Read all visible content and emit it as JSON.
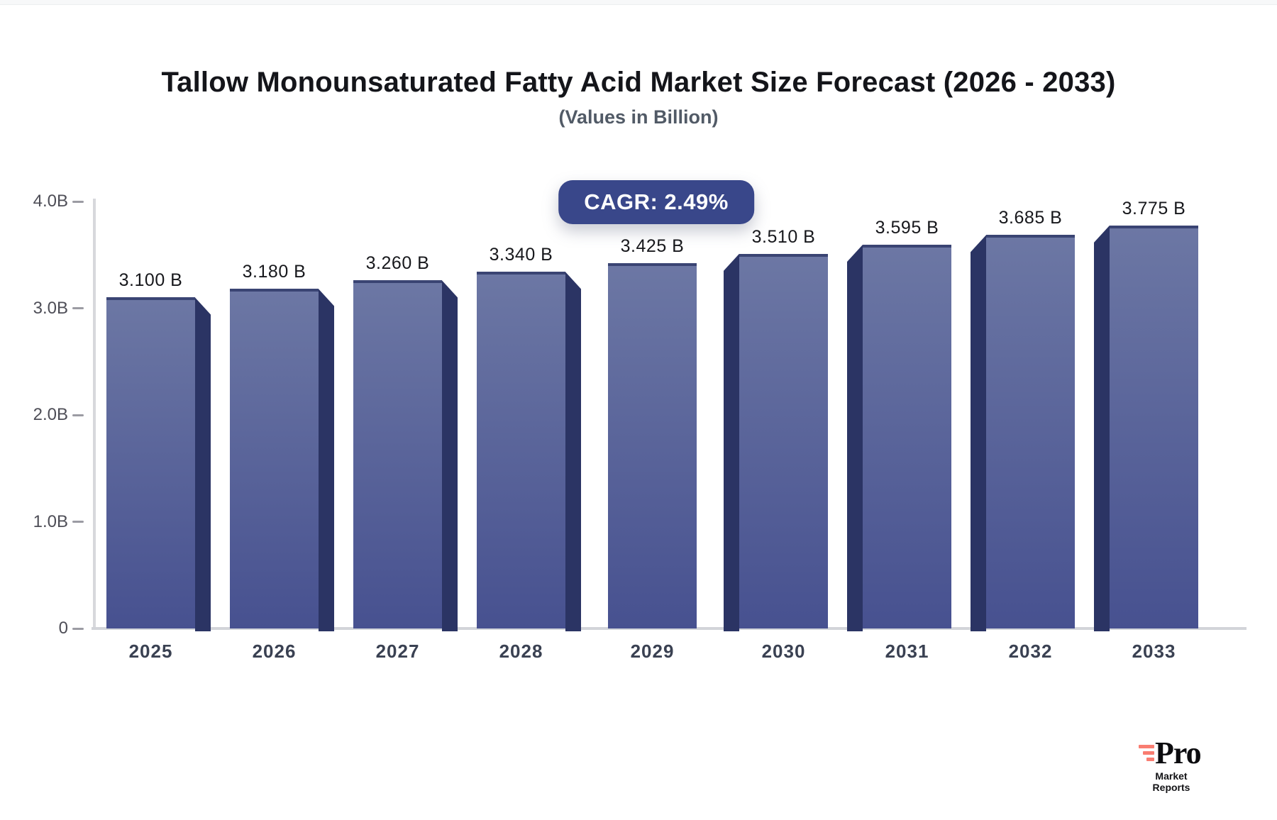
{
  "header": {
    "title": "Tallow Monounsaturated Fatty Acid Market Size Forecast (2026 - 2033)",
    "subtitle": "(Values in Billion)",
    "cagr_label": "CAGR: 2.49%"
  },
  "chart_data": {
    "type": "bar",
    "title": "Tallow Monounsaturated Fatty Acid Market Size Forecast (2026 - 2033)",
    "subtitle": "(Values in Billion)",
    "cagr_percent": 2.49,
    "unit": "Billion",
    "categories": [
      "2025",
      "2026",
      "2027",
      "2028",
      "2029",
      "2030",
      "2031",
      "2032",
      "2033"
    ],
    "values": [
      3.1,
      3.18,
      3.26,
      3.34,
      3.425,
      3.51,
      3.595,
      3.685,
      3.775
    ],
    "value_labels": [
      "3.100 B",
      "3.180 B",
      "3.260 B",
      "3.340 B",
      "3.425 B",
      "3.510 B",
      "3.595 B",
      "3.685 B",
      "3.775 B"
    ],
    "xlabel": "",
    "ylabel": "",
    "ylim": [
      0,
      4
    ],
    "yticks": [
      {
        "label": "4.0B",
        "value": 4
      },
      {
        "label": "3.0B",
        "value": 3
      },
      {
        "label": "2.0B",
        "value": 2
      },
      {
        "label": "1.0B",
        "value": 1
      },
      {
        "label": "0",
        "value": 0
      }
    ],
    "grid": false,
    "legend": false,
    "colors": {
      "bar_face_top": "#6C77A4",
      "bar_face_bottom": "#475190",
      "bar_side": "#2B3464",
      "bar_cap": "#3A4473",
      "badge_bg": "#39478A",
      "badge_text": "#FFFFFF"
    }
  },
  "logo": {
    "name": "Pro",
    "tagline": "Market Reports",
    "flag_color": "#F97D71"
  }
}
